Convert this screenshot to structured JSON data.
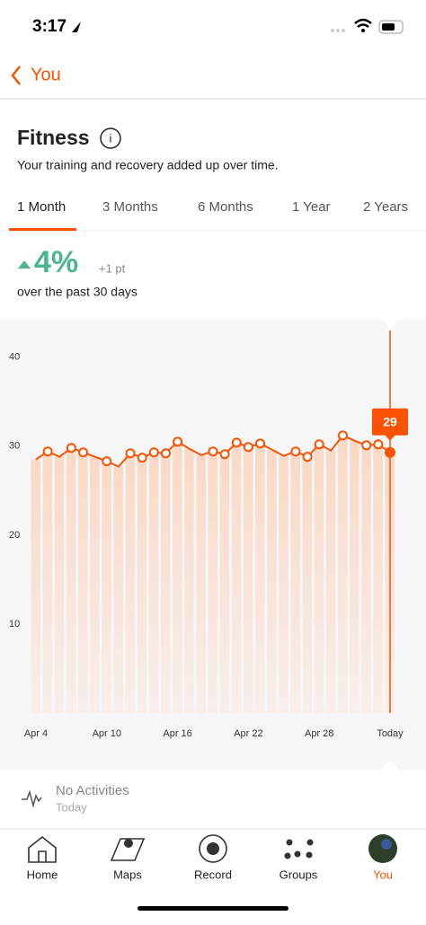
{
  "status_bar": {
    "time": "3:17"
  },
  "header": {
    "back": "You"
  },
  "section": {
    "title": "Fitness",
    "subtitle": "Your training and recovery added up over time."
  },
  "tabs": [
    "1 Month",
    "3 Months",
    "6 Months",
    "1 Year",
    "2 Years"
  ],
  "summary": {
    "change": "4%",
    "points": "+1 pt",
    "period": "over the past 30 days"
  },
  "chart_data": {
    "type": "line",
    "categories": [
      "Apr 4",
      null,
      null,
      null,
      null,
      null,
      "Apr 10",
      null,
      null,
      null,
      null,
      null,
      "Apr 16",
      null,
      null,
      null,
      null,
      null,
      "Apr 22",
      null,
      null,
      null,
      null,
      null,
      "Apr 28",
      null,
      null,
      null,
      null,
      null,
      "Today"
    ],
    "values": [
      28.5,
      29.4,
      28.8,
      29.8,
      29.3,
      28.8,
      28.3,
      27.7,
      29.2,
      28.7,
      29.3,
      29.2,
      30.5,
      29.7,
      29.0,
      29.4,
      29.1,
      30.4,
      29.9,
      30.3,
      29.6,
      28.9,
      29.4,
      28.8,
      30.2,
      29.5,
      31.2,
      30.6,
      30.1,
      30.2,
      29.3
    ],
    "markers": [
      false,
      true,
      false,
      true,
      true,
      false,
      true,
      false,
      true,
      true,
      true,
      true,
      true,
      false,
      false,
      true,
      true,
      true,
      true,
      true,
      false,
      false,
      true,
      true,
      true,
      false,
      true,
      false,
      true,
      true,
      true
    ],
    "current_value": 29,
    "color": "#fc5200",
    "ylim": [
      0,
      43
    ],
    "yticks": [
      10,
      20,
      30,
      40
    ]
  },
  "activity": {
    "title": "No Activities",
    "date": "Today"
  },
  "nav": [
    "Home",
    "Maps",
    "Record",
    "Groups",
    "You"
  ]
}
